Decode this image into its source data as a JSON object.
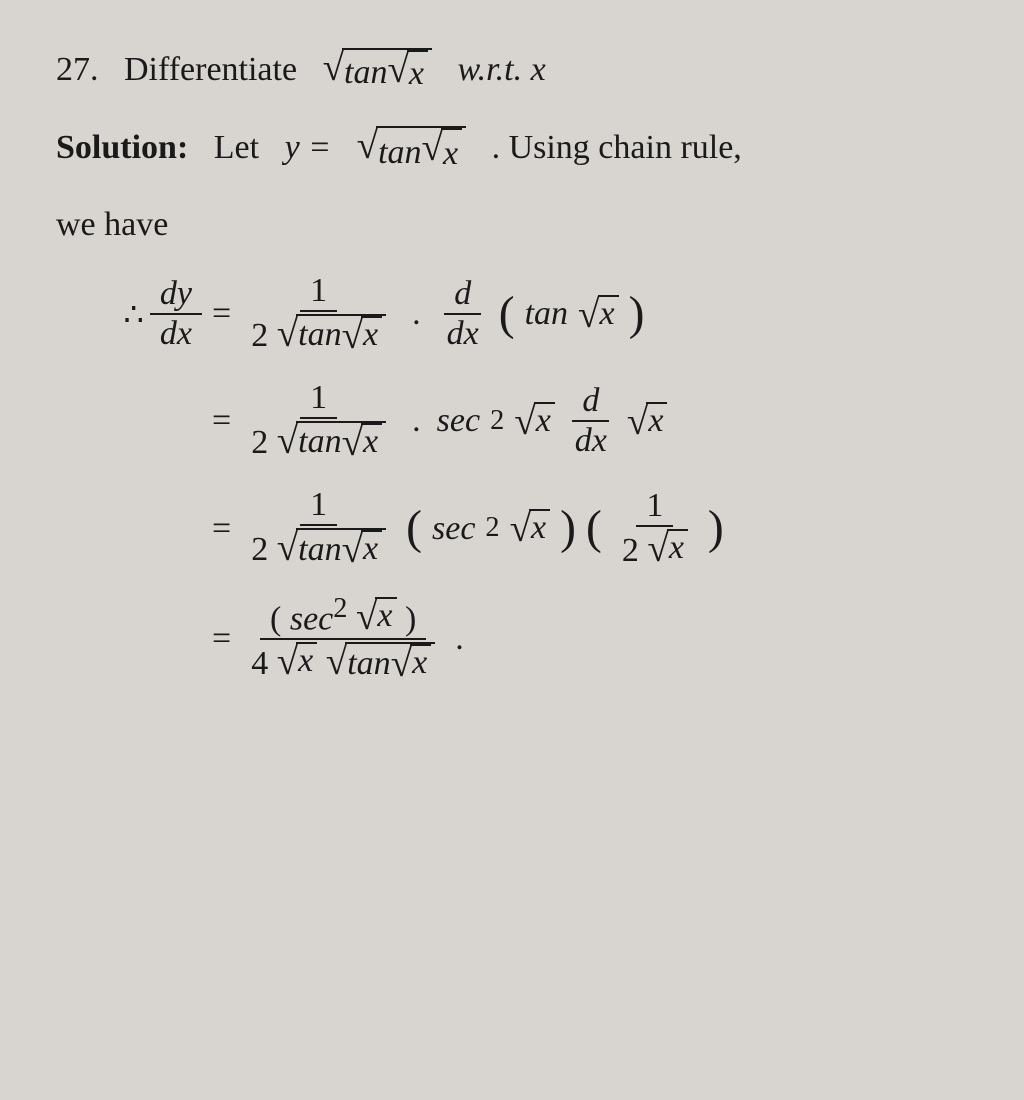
{
  "problem": {
    "number": "27.",
    "prefix": "Differentiate",
    "expr_tan_sqrtx": "tan",
    "suffix": "w.r.t. x",
    "x": "x"
  },
  "solution": {
    "label": "Solution:",
    "let": "Let",
    "y_eq": "y =",
    "tail": ". Using chain rule,",
    "wehave": "we have"
  },
  "sym": {
    "therefore": "∴",
    "eq": "=",
    "one": "1",
    "two": "2",
    "four": "4",
    "tan": "tan",
    "sec2": "sec",
    "sqx": "x",
    "dy": "dy",
    "dx": "dx",
    "d": "d",
    "dot": "."
  },
  "style": {
    "text_color": "#1a1a1a",
    "background_color": "#d8d4d0",
    "font_size_body": 34,
    "border_color": "#1a1a1a",
    "rule_width": 2.5
  }
}
